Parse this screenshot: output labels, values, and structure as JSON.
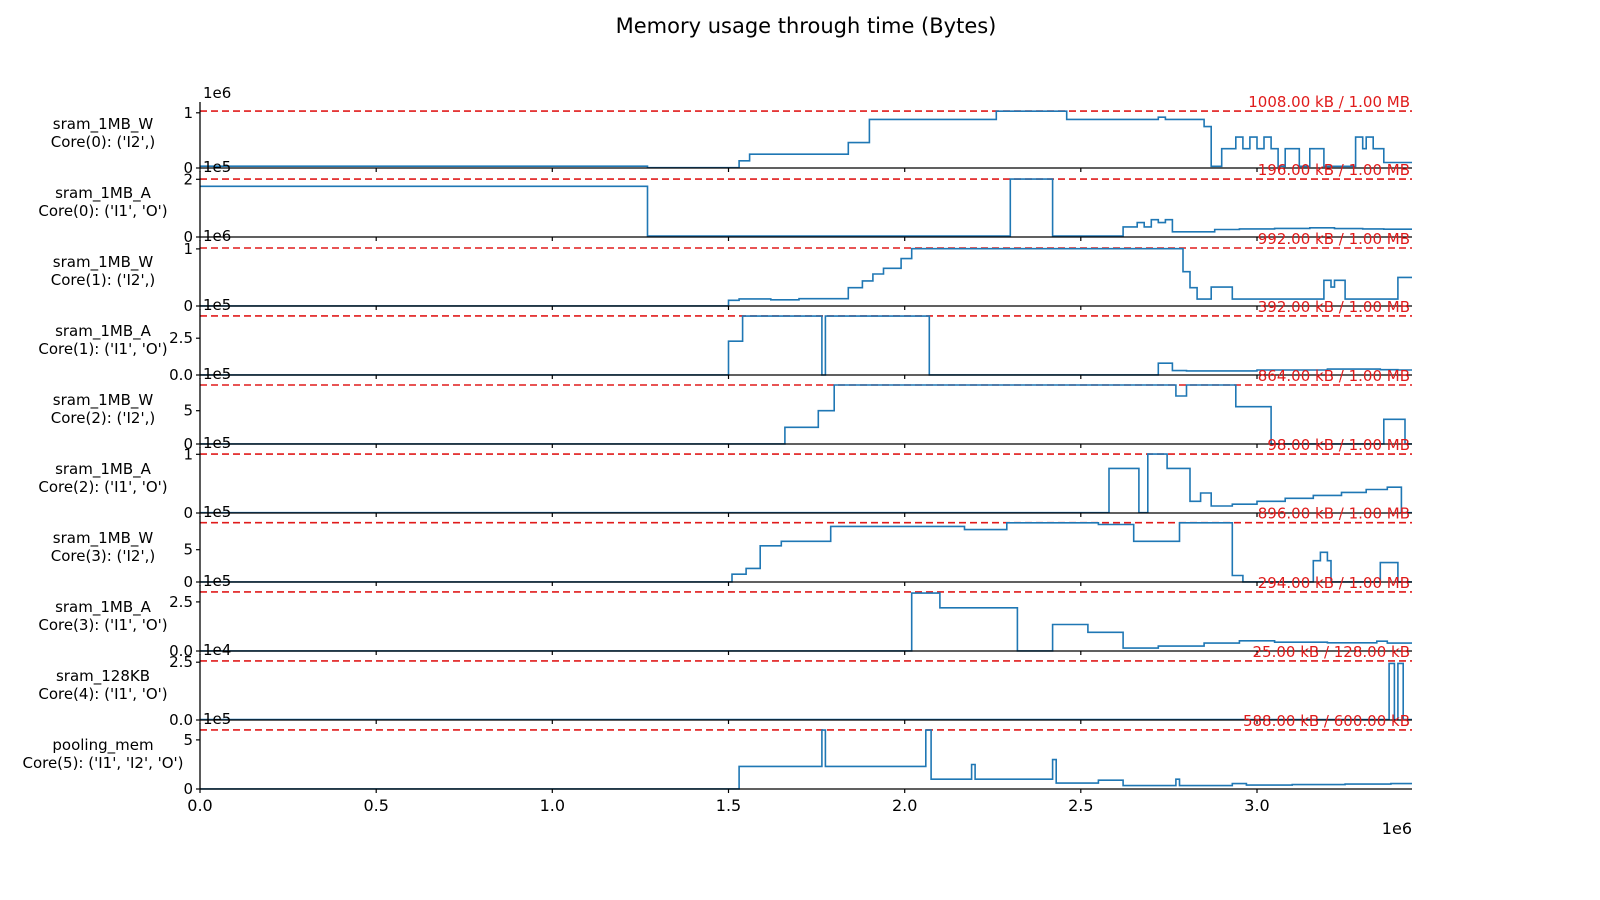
{
  "title": "Memory usage through time (Bytes)",
  "colors": {
    "line": "#1f77b4",
    "limit_line": "#e01b1b",
    "limit_text": "#e01b1b",
    "axis": "#000000",
    "text": "#000000",
    "background": "#ffffff"
  },
  "x_axis": {
    "tick_labels": [
      "0.0",
      "0.5",
      "1.0",
      "1.5",
      "2.0",
      "2.5",
      "3.0"
    ],
    "tick_values": [
      0,
      0.5,
      1.0,
      1.5,
      2.0,
      2.5,
      3.0
    ],
    "offset_label": "1e6",
    "x_unit": 1000000,
    "x_max": 3.44
  },
  "chart_data": {
    "type": "line",
    "style": "step-post",
    "grid": false,
    "legend": false,
    "subplots": [
      {
        "label_line1": "sram_1MB_W",
        "label_line2": "Core(0): ('I2',)",
        "y_scale_label": "1e6",
        "y_ticks": [
          {
            "label": "0",
            "value": 0
          },
          {
            "label": "1",
            "value": 1000000
          }
        ],
        "y_max": 1160000,
        "limit": {
          "label": "1008.00 kB / 1.00 MB",
          "value": 1032192
        },
        "steps": [
          [
            0,
            33000
          ],
          [
            1.27,
            5000
          ],
          [
            1.53,
            130000
          ],
          [
            1.56,
            250000
          ],
          [
            1.84,
            460000
          ],
          [
            1.9,
            880000
          ],
          [
            2.26,
            1030000
          ],
          [
            2.46,
            880000
          ],
          [
            2.72,
            920000
          ],
          [
            2.74,
            880000
          ],
          [
            2.85,
            750000
          ],
          [
            2.87,
            30000
          ],
          [
            2.9,
            350000
          ],
          [
            2.94,
            560000
          ],
          [
            2.96,
            350000
          ],
          [
            2.98,
            560000
          ],
          [
            3.0,
            350000
          ],
          [
            3.02,
            560000
          ],
          [
            3.04,
            350000
          ],
          [
            3.06,
            30000
          ],
          [
            3.08,
            350000
          ],
          [
            3.12,
            30000
          ],
          [
            3.15,
            350000
          ],
          [
            3.19,
            30000
          ],
          [
            3.28,
            560000
          ],
          [
            3.3,
            350000
          ],
          [
            3.31,
            560000
          ],
          [
            3.33,
            350000
          ],
          [
            3.36,
            100000
          ]
        ]
      },
      {
        "label_line1": "sram_1MB_A",
        "label_line2": "Core(0): ('I1', 'O')",
        "y_scale_label": "1e5",
        "y_ticks": [
          {
            "label": "0",
            "value": 0
          },
          {
            "label": "2",
            "value": 200000
          }
        ],
        "y_max": 222000,
        "limit": {
          "label": "196.00 kB / 1.00 MB",
          "value": 200704
        },
        "steps": [
          [
            0,
            176000
          ],
          [
            1.27,
            3000
          ],
          [
            2.3,
            200704
          ],
          [
            2.42,
            3000
          ],
          [
            2.62,
            35000
          ],
          [
            2.66,
            50000
          ],
          [
            2.68,
            35000
          ],
          [
            2.7,
            60000
          ],
          [
            2.72,
            50000
          ],
          [
            2.74,
            60000
          ],
          [
            2.76,
            18000
          ],
          [
            2.88,
            26000
          ],
          [
            2.95,
            28000
          ],
          [
            3.05,
            30000
          ],
          [
            3.15,
            32000
          ],
          [
            3.22,
            29000
          ],
          [
            3.3,
            28000
          ],
          [
            3.36,
            27000
          ]
        ]
      },
      {
        "label_line1": "sram_1MB_W",
        "label_line2": "Core(1): ('I2',)",
        "y_scale_label": "1e6",
        "y_ticks": [
          {
            "label": "0",
            "value": 0
          },
          {
            "label": "1",
            "value": 1000000
          }
        ],
        "y_max": 1120000,
        "limit": {
          "label": "992.00 kB / 1.00 MB",
          "value": 1015808
        },
        "steps": [
          [
            0,
            2000
          ],
          [
            1.5,
            100000
          ],
          [
            1.53,
            125000
          ],
          [
            1.62,
            108000
          ],
          [
            1.7,
            128000
          ],
          [
            1.84,
            320000
          ],
          [
            1.88,
            440000
          ],
          [
            1.91,
            560000
          ],
          [
            1.94,
            660000
          ],
          [
            1.99,
            830000
          ],
          [
            2.02,
            1002000
          ],
          [
            2.79,
            600000
          ],
          [
            2.81,
            320000
          ],
          [
            2.83,
            120000
          ],
          [
            2.87,
            330000
          ],
          [
            2.93,
            120000
          ],
          [
            3.19,
            450000
          ],
          [
            3.21,
            330000
          ],
          [
            3.22,
            450000
          ],
          [
            3.25,
            120000
          ],
          [
            3.4,
            500000
          ]
        ]
      },
      {
        "label_line1": "sram_1MB_A",
        "label_line2": "Core(1): ('I1', 'O')",
        "y_scale_label": "1e5",
        "y_ticks": [
          {
            "label": "0.0",
            "value": 0
          },
          {
            "label": "2.5",
            "value": 250000
          }
        ],
        "y_max": 435000,
        "limit": {
          "label": "392.00 kB / 1.00 MB",
          "value": 401408
        },
        "steps": [
          [
            0,
            1000
          ],
          [
            1.5,
            230000
          ],
          [
            1.54,
            400000
          ],
          [
            1.765,
            0
          ],
          [
            1.775,
            400000
          ],
          [
            2.07,
            1000
          ],
          [
            2.72,
            80000
          ],
          [
            2.76,
            30000
          ],
          [
            2.8,
            28000
          ],
          [
            3.0,
            34000
          ],
          [
            3.2,
            40000
          ],
          [
            3.35,
            36000
          ],
          [
            3.4,
            34000
          ]
        ]
      },
      {
        "label_line1": "sram_1MB_W",
        "label_line2": "Core(2): ('I2',)",
        "y_scale_label": "1e5",
        "y_ticks": [
          {
            "label": "0",
            "value": 0
          },
          {
            "label": "5",
            "value": 500000
          }
        ],
        "y_max": 960000,
        "limit": {
          "label": "864.00 kB / 1.00 MB",
          "value": 884736
        },
        "steps": [
          [
            0,
            1000
          ],
          [
            1.66,
            250000
          ],
          [
            1.755,
            500000
          ],
          [
            1.8,
            885000
          ],
          [
            2.77,
            720000
          ],
          [
            2.8,
            885000
          ],
          [
            2.94,
            560000
          ],
          [
            3.04,
            1000
          ],
          [
            3.36,
            370000
          ],
          [
            3.42,
            1000
          ]
        ]
      },
      {
        "label_line1": "sram_1MB_A",
        "label_line2": "Core(2): ('I1', 'O')",
        "y_scale_label": "1e5",
        "y_ticks": [
          {
            "label": "0",
            "value": 0
          },
          {
            "label": "1",
            "value": 100000
          }
        ],
        "y_max": 109000,
        "limit": {
          "label": "98.00 kB / 1.00 MB",
          "value": 100352
        },
        "steps": [
          [
            0,
            500
          ],
          [
            2.58,
            76000
          ],
          [
            2.665,
            500
          ],
          [
            2.69,
            100352
          ],
          [
            2.745,
            76000
          ],
          [
            2.81,
            20000
          ],
          [
            2.84,
            34000
          ],
          [
            2.87,
            12000
          ],
          [
            2.93,
            15000
          ],
          [
            3.0,
            20000
          ],
          [
            3.08,
            25000
          ],
          [
            3.16,
            30000
          ],
          [
            3.24,
            35000
          ],
          [
            3.31,
            40000
          ],
          [
            3.37,
            44000
          ],
          [
            3.41,
            500
          ]
        ]
      },
      {
        "label_line1": "sram_1MB_W",
        "label_line2": "Core(3): ('I2',)",
        "y_scale_label": "1e5",
        "y_ticks": [
          {
            "label": "0",
            "value": 0
          },
          {
            "label": "5",
            "value": 500000
          }
        ],
        "y_max": 990000,
        "limit": {
          "label": "896.00 kB / 1.00 MB",
          "value": 917504
        },
        "steps": [
          [
            0,
            1000
          ],
          [
            1.51,
            120000
          ],
          [
            1.55,
            210000
          ],
          [
            1.59,
            560000
          ],
          [
            1.65,
            630000
          ],
          [
            1.79,
            860000
          ],
          [
            2.17,
            810000
          ],
          [
            2.29,
            915000
          ],
          [
            2.55,
            890000
          ],
          [
            2.65,
            630000
          ],
          [
            2.78,
            915000
          ],
          [
            2.93,
            100000
          ],
          [
            2.96,
            1000
          ],
          [
            3.16,
            330000
          ],
          [
            3.18,
            460000
          ],
          [
            3.2,
            330000
          ],
          [
            3.21,
            1000
          ],
          [
            3.35,
            300000
          ],
          [
            3.4,
            1000
          ]
        ]
      },
      {
        "label_line1": "sram_1MB_A",
        "label_line2": "Core(3): ('I1', 'O')",
        "y_scale_label": "1e5",
        "y_ticks": [
          {
            "label": "0.0",
            "value": 0
          },
          {
            "label": "2.5",
            "value": 250000
          }
        ],
        "y_max": 326000,
        "limit": {
          "label": "294.00 kB / 1.00 MB",
          "value": 301056
        },
        "steps": [
          [
            0,
            500
          ],
          [
            2.02,
            295000
          ],
          [
            2.1,
            220000
          ],
          [
            2.32,
            500
          ],
          [
            2.42,
            135000
          ],
          [
            2.52,
            95000
          ],
          [
            2.62,
            15000
          ],
          [
            2.72,
            25000
          ],
          [
            2.85,
            40000
          ],
          [
            2.95,
            52000
          ],
          [
            3.05,
            45000
          ],
          [
            3.2,
            42000
          ],
          [
            3.34,
            50000
          ],
          [
            3.37,
            40000
          ]
        ]
      },
      {
        "label_line1": "sram_128KB",
        "label_line2": "Core(4): ('I1', 'O')",
        "y_scale_label": "1e4",
        "y_ticks": [
          {
            "label": "0.0",
            "value": 0
          },
          {
            "label": "2.5",
            "value": 25000
          }
        ],
        "y_max": 27700,
        "limit": {
          "label": "25.00 kB / 128.00 kB",
          "value": 25600
        },
        "steps": [
          [
            0,
            200
          ],
          [
            3.375,
            24500
          ],
          [
            3.39,
            200
          ],
          [
            3.4,
            24500
          ],
          [
            3.415,
            200
          ]
        ]
      },
      {
        "label_line1": "pooling_mem",
        "label_line2": "Core(5): ('I1', 'I2', 'O')",
        "y_scale_label": "1e5",
        "y_ticks": [
          {
            "label": "0",
            "value": 0
          },
          {
            "label": "5",
            "value": 500000
          }
        ],
        "y_max": 652000,
        "limit": {
          "label": "588.00 kB / 600.00 kB",
          "value": 602112
        },
        "steps": [
          [
            0,
            1000
          ],
          [
            1.53,
            230000
          ],
          [
            1.765,
            600000
          ],
          [
            1.775,
            230000
          ],
          [
            2.06,
            600000
          ],
          [
            2.075,
            100000
          ],
          [
            2.19,
            250000
          ],
          [
            2.2,
            100000
          ],
          [
            2.42,
            300000
          ],
          [
            2.43,
            60000
          ],
          [
            2.55,
            90000
          ],
          [
            2.62,
            35000
          ],
          [
            2.77,
            100000
          ],
          [
            2.78,
            35000
          ],
          [
            2.93,
            55000
          ],
          [
            2.97,
            40000
          ],
          [
            3.1,
            45000
          ],
          [
            3.25,
            50000
          ],
          [
            3.38,
            55000
          ]
        ]
      }
    ]
  }
}
